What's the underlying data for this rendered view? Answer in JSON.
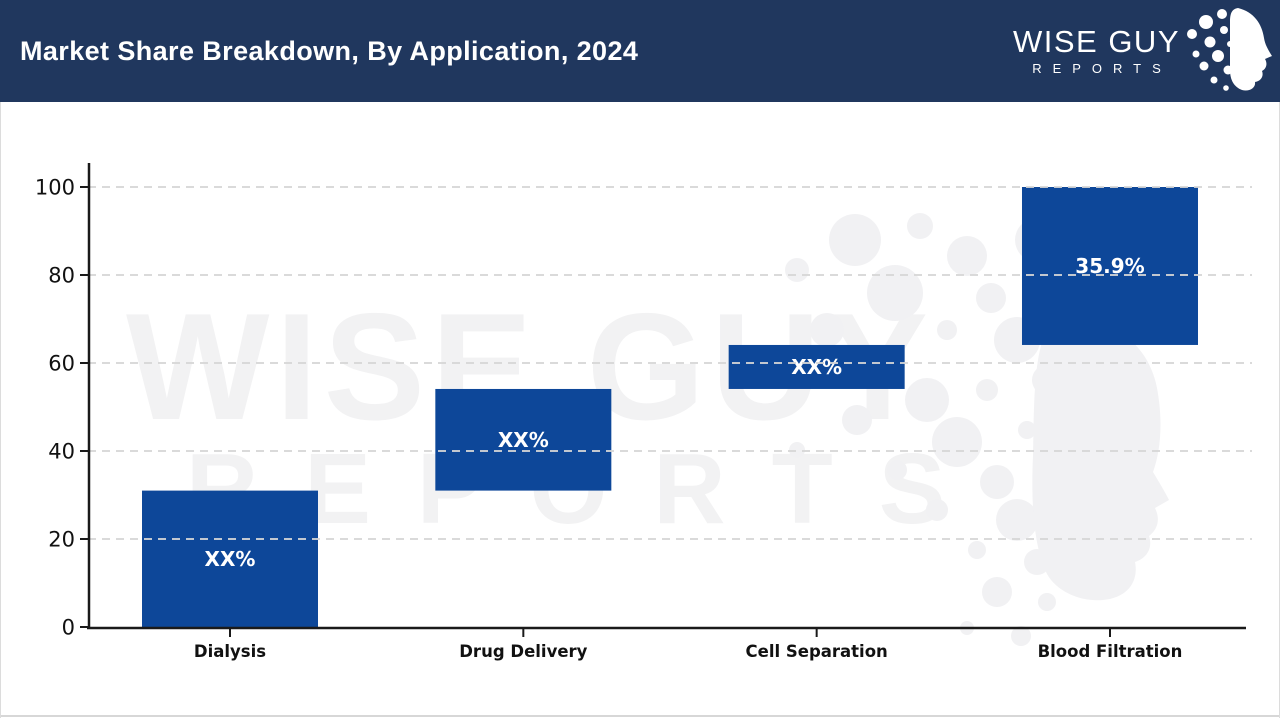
{
  "header": {
    "title": "Market Share Breakdown, By Application, 2024",
    "bg_color": "#20375e",
    "logo": {
      "line1": "WISE GUY",
      "line2": "REPORTS"
    }
  },
  "watermark": {
    "line1": "WISE GUY",
    "line2": "REPORTS"
  },
  "chart_data": {
    "type": "bar",
    "subtype": "waterfall (floating segment bars)",
    "title": "Market Share Breakdown, By Application, 2024",
    "categories": [
      "Dialysis",
      "Drug Delivery",
      "Cell Separation",
      "Blood Filtration"
    ],
    "segments": [
      {
        "category": "Dialysis",
        "start": 0,
        "end": 31,
        "label": "XX%"
      },
      {
        "category": "Drug Delivery",
        "start": 31,
        "end": 54.1,
        "label": "XX%"
      },
      {
        "category": "Cell Separation",
        "start": 54.1,
        "end": 64.1,
        "label": "XX%"
      },
      {
        "category": "Blood Filtration",
        "start": 64.1,
        "end": 100,
        "label": "35.9%"
      }
    ],
    "xlabel": "",
    "ylabel": "",
    "ylim": [
      0,
      100
    ],
    "yticks": [
      0,
      20,
      40,
      60,
      80,
      100
    ],
    "grid": "horizontal dashed, drawn over bars",
    "grid_color": "#d6d6d6",
    "axis_color": "#1a1a1a",
    "bar_color": "#0d4799",
    "label_color": "#ffffff",
    "tick_label_color": "#111111",
    "legend": "none"
  }
}
